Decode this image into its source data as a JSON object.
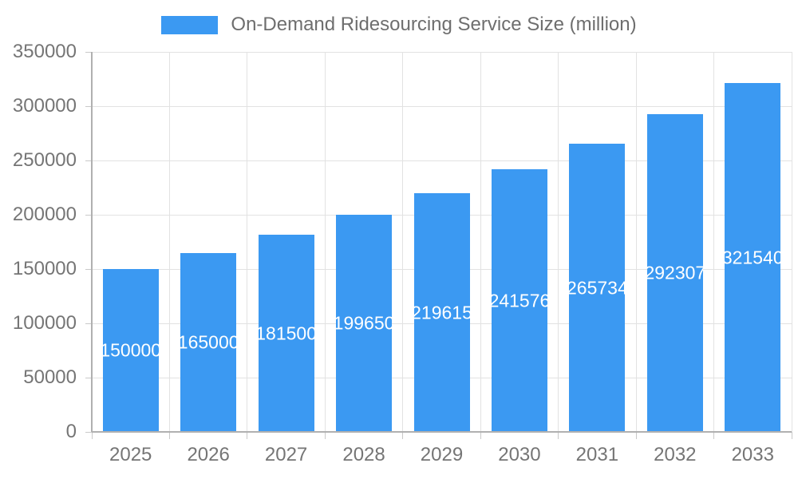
{
  "legend": {
    "label": "On-Demand Ridesourcing Service Size (million)"
  },
  "chart_data": {
    "type": "bar",
    "title": "On-Demand Ridesourcing Service Size (million)",
    "categories": [
      "2025",
      "2026",
      "2027",
      "2028",
      "2029",
      "2030",
      "2031",
      "2032",
      "2033"
    ],
    "values": [
      150000,
      165000,
      181500,
      199650,
      219615,
      241576,
      265734,
      292307,
      321540
    ],
    "bar_labels": [
      "150000",
      "165000",
      "181500",
      "199650",
      "219615",
      "241576",
      "265734",
      "292307",
      "321540"
    ],
    "xlabel": "",
    "ylabel": "",
    "ylim": [
      0,
      350000
    ],
    "ytick_step": 50000,
    "yticks": [
      0,
      50000,
      100000,
      150000,
      200000,
      250000,
      300000,
      350000
    ],
    "grid": true,
    "legend_position": "top",
    "bar_color": "#3b99f2",
    "value_label_color": "#ffffff",
    "axis_text_color": "#757575"
  },
  "colors": {
    "bar": "#3b99f2",
    "grid": "#e2e2e2",
    "axis_line": "#b0b0b0",
    "tick_mark": "#c9c9c9",
    "tick_text": "#757575",
    "legend_text": "#6e6e6e",
    "background": "#ffffff"
  }
}
